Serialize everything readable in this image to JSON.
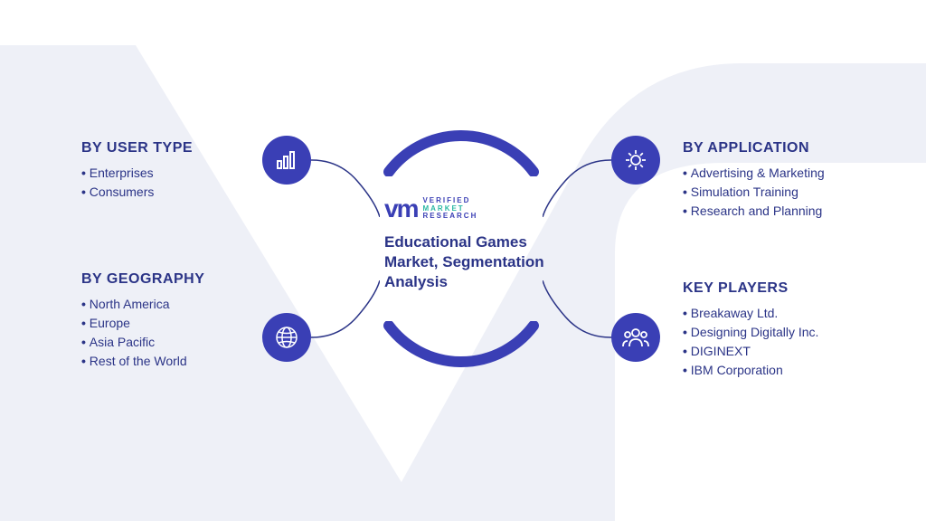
{
  "colors": {
    "primary": "#3a3fb5",
    "text": "#2b3487",
    "accent": "#2bb8a3",
    "watermark": "#eef0f7",
    "white": "#ffffff",
    "iconStroke": "#ffffff",
    "connectorStroke": "#2b3487"
  },
  "logo": {
    "vm": "vm",
    "line1": "VERIFIED",
    "line2": "MARKET",
    "line3": "RESEARCH"
  },
  "centerTitle": "Educational Games Market, Segmentation Analysis",
  "sections": {
    "topLeft": {
      "title": "BY USER TYPE",
      "items": [
        "Enterprises",
        "Consumers"
      ],
      "icon": "bar-chart-icon"
    },
    "bottomLeft": {
      "title": "BY GEOGRAPHY",
      "items": [
        "North America",
        "Europe",
        "Asia Pacific",
        "Rest of the World"
      ],
      "icon": "globe-icon"
    },
    "topRight": {
      "title": "BY APPLICATION",
      "items": [
        "Advertising & Marketing",
        "Simulation Training",
        "Research and Planning"
      ],
      "icon": "gear-icon"
    },
    "bottomRight": {
      "title": "KEY PLAYERS",
      "items": [
        "Breakaway Ltd.",
        "Designing Digitally Inc.",
        "DIGINEXT",
        "IBM Corporation"
      ],
      "icon": "people-icon"
    }
  },
  "styling": {
    "arcStrokeWidth": 12,
    "connectorStrokeWidth": 1.5,
    "iconCircleDiameter": 54,
    "titleFontSize": 16,
    "itemFontSize": 14,
    "centerTitleFontSize": 17
  }
}
